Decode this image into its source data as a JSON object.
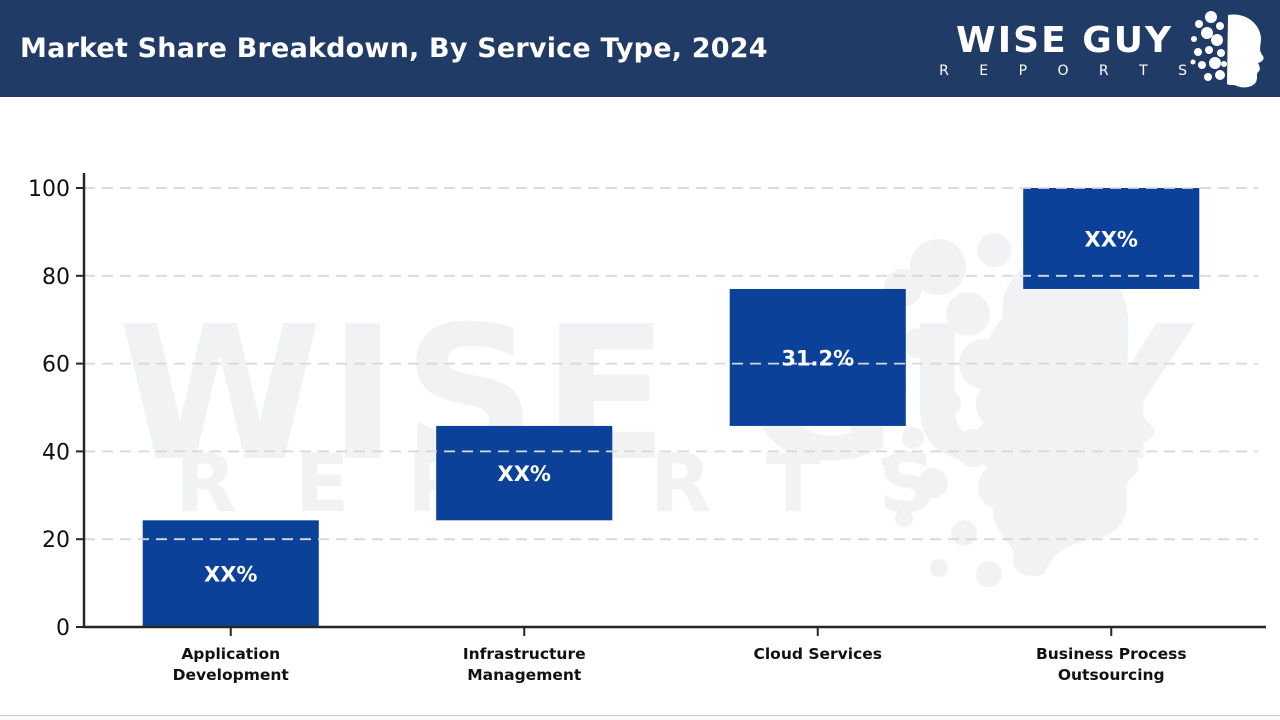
{
  "header": {
    "title": "Market Share Breakdown, By Service Type, 2024",
    "logo": {
      "line1": "WISE GUY",
      "line2": "R E P O R T S",
      "head_icon": "dotted-head-profile"
    },
    "bg_color": "#203b65"
  },
  "watermark": {
    "line1": "WISE GUY",
    "line2": "REPORTS",
    "color": "#f1f2f3"
  },
  "chart_data": {
    "type": "bar",
    "subtype": "waterfall-floating-segments",
    "title": "Market Share Breakdown, By Service Type, 2024",
    "categories": [
      "Application Development",
      "Infrastructure Management",
      "Cloud Services",
      "Business Process Outsourcing"
    ],
    "categories_lines": [
      [
        "Application",
        "Development"
      ],
      [
        "Infrastructure",
        "Management"
      ],
      [
        "Cloud Services"
      ],
      [
        "Business Process",
        "Outsourcing"
      ]
    ],
    "segments": [
      {
        "category": "Application Development",
        "start": 0,
        "end": 24.3,
        "value": 24.3,
        "value_label": "XX%"
      },
      {
        "category": "Infrastructure Management",
        "start": 24.3,
        "end": 45.8,
        "value": 21.5,
        "value_label": "XX%"
      },
      {
        "category": "Cloud Services",
        "start": 45.8,
        "end": 77.0,
        "value": 31.2,
        "value_label": "31.2%"
      },
      {
        "category": "Business Process Outsourcing",
        "start": 77.0,
        "end": 100,
        "value": 23.0,
        "value_label": "XX%"
      }
    ],
    "xlabel": "",
    "ylabel": "",
    "ylim": [
      0,
      100
    ],
    "yticks": [
      0,
      20,
      40,
      60,
      80,
      100
    ],
    "grid": {
      "horizontal": true,
      "style": "dashed",
      "color": "#d8d8d8",
      "above_bars": true
    },
    "legend": "none",
    "bar_color": "#0c4199",
    "bar_label_color": "#ffffff",
    "axis_color": "#262626",
    "tick_label_color": "#111111"
  }
}
